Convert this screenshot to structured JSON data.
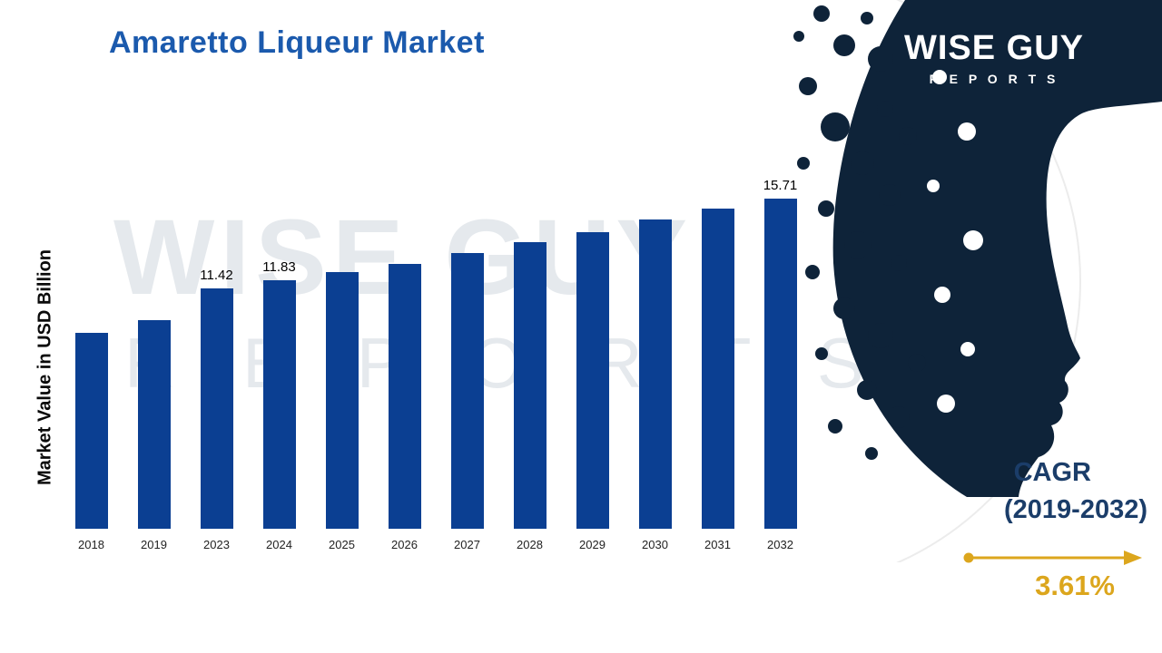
{
  "page_title": "Amaretto Liqueur Market",
  "watermark": {
    "line1": "WISE GUY",
    "line2": "R E P O R T S"
  },
  "logo": {
    "line1": "WISE GUY",
    "line2": "R E P O R T S"
  },
  "cagr": {
    "label_line1": "CAGR",
    "label_line2": "(2019-2032)",
    "value": "3.61%"
  },
  "colors": {
    "title_blue": "#1b5aad",
    "bar_blue": "#0b3f92",
    "brand_navy": "#0e2339",
    "gold": "#dca61d",
    "cagr_navy": "#1b3d69"
  },
  "chart_data": {
    "type": "bar",
    "title": "Amaretto Liqueur Market",
    "xlabel": "",
    "ylabel": "Market Value in USD Billion",
    "categories": [
      "2018",
      "2019",
      "2023",
      "2024",
      "2025",
      "2026",
      "2027",
      "2028",
      "2029",
      "2030",
      "2031",
      "2032"
    ],
    "values": [
      9.3,
      9.9,
      11.42,
      11.83,
      12.2,
      12.6,
      13.1,
      13.6,
      14.1,
      14.7,
      15.2,
      15.71
    ],
    "bar_labels": [
      "",
      "",
      "11.42",
      "11.83",
      "",
      "",
      "",
      "",
      "",
      "",
      "",
      "15.71"
    ],
    "ylim": [
      0,
      17
    ],
    "grid": false,
    "legend": false,
    "bar_color": "#0b3f92",
    "units": "USD Billion"
  }
}
